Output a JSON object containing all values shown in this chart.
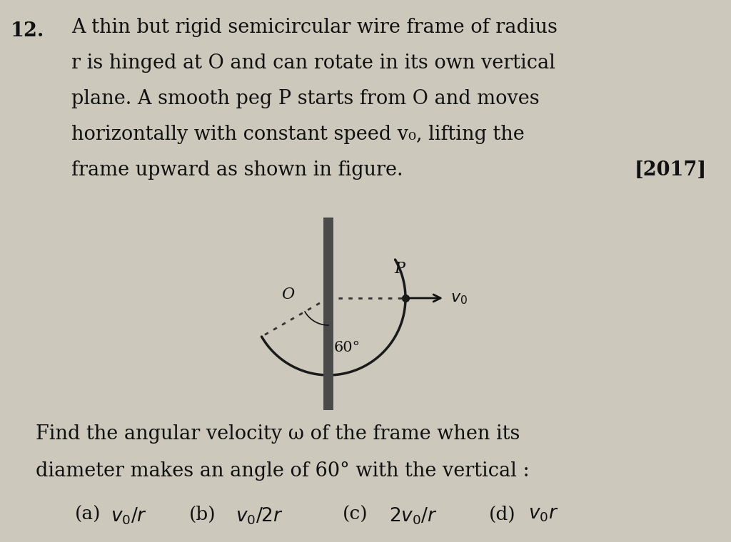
{
  "background_color": "#cdc8bc",
  "text_color": "#111111",
  "fig_bg": "#e8e4db",
  "question_number": "12.",
  "line1": "A thin but rigid semicircular wire frame of radius",
  "line2": "r is hinged at O and can rotate in its own vertical",
  "line3": "plane. A smooth peg P starts from O and moves",
  "line4": "horizontally with constant speed v₀, lifting the",
  "line5": "frame upward as shown in figure.",
  "year": "[2017]",
  "find1": "Find the angular velocity ω of the frame when its",
  "find2": "diameter makes an angle of 60° with the vertical :",
  "opt_a": "(a)",
  "opt_a_val": "v₀/r",
  "opt_b": "(b)",
  "opt_b_val": "v₀/2r",
  "opt_c": "(c)",
  "opt_c_val": "2v₀/r",
  "opt_d": "(d)",
  "opt_d_val": "v₀r",
  "semicircle_color": "#1a1a1a",
  "bar_color": "#4a4a4a",
  "dot_color": "#333333",
  "arrow_color": "#111111",
  "angle_label": "60°",
  "O_label": "O",
  "P_label": "P",
  "v0_label": "v₀",
  "font_size_main": 19.5,
  "font_size_diagram": 15,
  "font_size_options": 19
}
